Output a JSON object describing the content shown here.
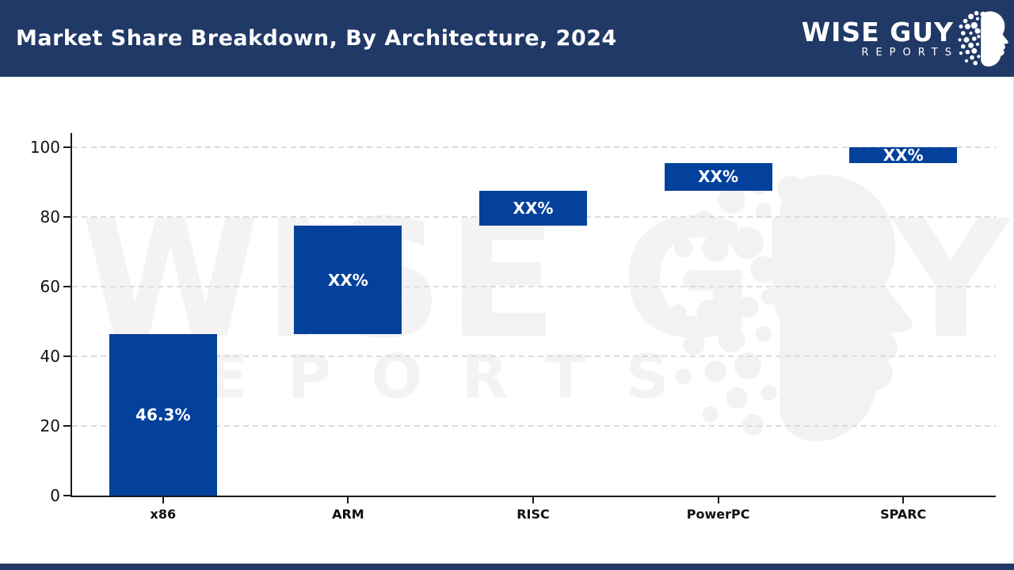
{
  "header": {
    "title": "Market Share Breakdown, By Architecture, 2024",
    "logo": {
      "line1": "WISE GUY",
      "line2": "REPORTS"
    }
  },
  "watermark": {
    "line1": "WISE GUY",
    "line2": "REPORTS"
  },
  "colors": {
    "header_bg": "#213966",
    "footer_bg": "#213966",
    "bar_blue": "#04419C",
    "bar_label_white": "#ffffff",
    "grid_line": "#dcdcdc",
    "axis_black": "#1a1a1a",
    "watermark_gray": "#f3f3f3"
  },
  "chart_data": {
    "type": "bar",
    "subtype": "waterfall",
    "title": "Market Share Breakdown, By Architecture, 2024",
    "xlabel": "",
    "ylabel": "",
    "categories": [
      "x86",
      "ARM",
      "RISC",
      "PowerPC",
      "SPARC"
    ],
    "segments": [
      {
        "category": "x86",
        "start": 0,
        "end": 46.3,
        "label": "46.3%"
      },
      {
        "category": "ARM",
        "start": 46.3,
        "end": 77.4,
        "label": "XX%"
      },
      {
        "category": "RISC",
        "start": 77.4,
        "end": 87.5,
        "label": "XX%"
      },
      {
        "category": "PowerPC",
        "start": 87.5,
        "end": 95.5,
        "label": "XX%"
      },
      {
        "category": "SPARC",
        "start": 95.5,
        "end": 100,
        "label": "XX%"
      }
    ],
    "yticks": [
      0,
      20,
      40,
      60,
      80,
      100
    ],
    "ylim": [
      0,
      105
    ],
    "grid": "horizontal dashed",
    "legend": "none",
    "bar_color": "#04419C",
    "label_color": "#ffffff"
  }
}
